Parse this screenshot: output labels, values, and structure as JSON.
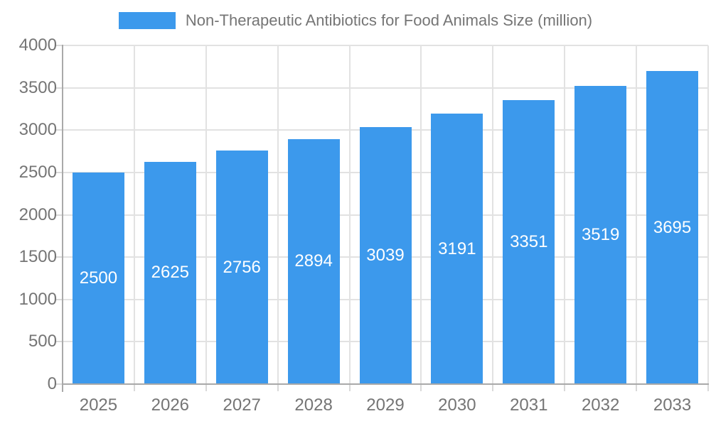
{
  "chart_data": {
    "type": "bar",
    "title": "Non-Therapeutic Antibiotics for Food Animals Size (million)",
    "categories": [
      "2025",
      "2026",
      "2027",
      "2028",
      "2029",
      "2030",
      "2031",
      "2032",
      "2033"
    ],
    "values": [
      2500,
      2625,
      2756,
      2894,
      3039,
      3191,
      3351,
      3519,
      3695
    ],
    "xlabel": "",
    "ylabel": "",
    "ylim": [
      0,
      4000
    ],
    "ytick_step": 500,
    "ytick_labels": [
      "0",
      "500",
      "1000",
      "1500",
      "2000",
      "2500",
      "3000",
      "3500",
      "4000"
    ],
    "grid": true,
    "legend_position": "top-center",
    "bar_label_position": "center",
    "colors": {
      "bar": "#3C99EC",
      "bar_label": "#FFFFFF",
      "grid_line": "#E2E2E2",
      "axis_line": "#A9A9A9",
      "tick_mark": "#D9D9D9",
      "tick_label": "#757575",
      "legend_text": "#757575",
      "background": "#FFFFFF"
    }
  }
}
